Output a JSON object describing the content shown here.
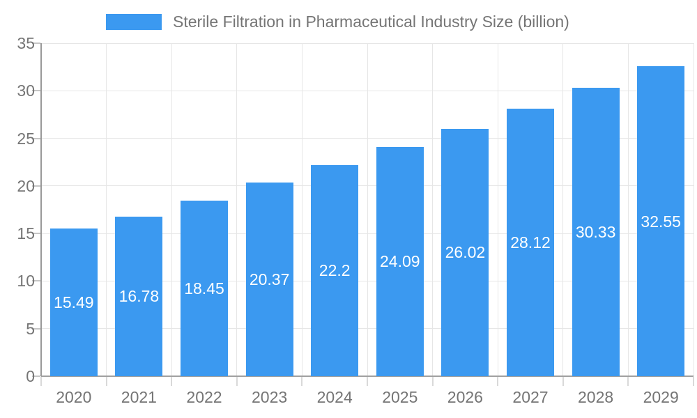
{
  "chart_data": {
    "type": "bar",
    "title": "Sterile Filtration in Pharmaceutical Industry Size (billion)",
    "categories": [
      "2020",
      "2021",
      "2022",
      "2023",
      "2024",
      "2025",
      "2026",
      "2027",
      "2028",
      "2029"
    ],
    "values": [
      15.49,
      16.78,
      18.45,
      20.37,
      22.2,
      24.09,
      26.02,
      28.12,
      30.33,
      32.55
    ],
    "value_labels": [
      "15.49",
      "16.78",
      "18.45",
      "20.37",
      "22.2",
      "24.09",
      "26.02",
      "28.12",
      "30.33",
      "32.55"
    ],
    "xlabel": "",
    "ylabel": "",
    "ylim": [
      0,
      35
    ],
    "ytick_step": 5,
    "ytick_labels": [
      "0",
      "5",
      "10",
      "15",
      "20",
      "25",
      "30",
      "35"
    ],
    "grid": true,
    "legend_position": "top",
    "colors": {
      "bar": "#3B99F0",
      "grid": "#E6E6E6",
      "axis": "#9E9E9E",
      "text": "#757575",
      "value_label": "#FFFFFF",
      "background": "#FFFFFF"
    }
  }
}
